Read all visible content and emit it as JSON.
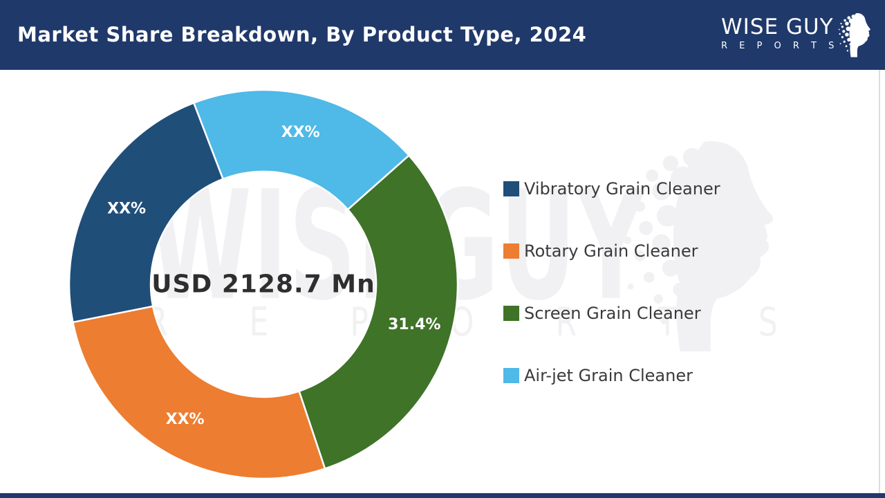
{
  "header": {
    "title": "Market Share Breakdown, By Product Type, 2024",
    "logo": {
      "line1": "WISE GUY",
      "line2": "R E P O R T S"
    }
  },
  "watermark": {
    "line1": "WISEGUY",
    "line2": "R E P O R T S"
  },
  "chart_data": {
    "type": "pie",
    "variant": "donut",
    "title": "Market Share Breakdown, By Product Type, 2024",
    "center_label": "USD 2128.7 Mn",
    "start_angle_deg": 111,
    "direction": "counterclockwise",
    "hole_ratio": 0.58,
    "legend_position": "right",
    "categories": [
      "Vibratory Grain Cleaner",
      "Rotary Grain Cleaner",
      "Screen Grain Cleaner",
      "Air-jet Grain Cleaner"
    ],
    "series": [
      {
        "name": "Vibratory Grain Cleaner",
        "value_pct": 22.3,
        "label": "XX%",
        "color": "#1F4E79"
      },
      {
        "name": "Rotary Grain Cleaner",
        "value_pct": 27.0,
        "label": "XX%",
        "color": "#ED7D31"
      },
      {
        "name": "Screen Grain Cleaner",
        "value_pct": 31.4,
        "label": "31.4%",
        "color": "#3F7328"
      },
      {
        "name": "Air-jet Grain Cleaner",
        "value_pct": 19.3,
        "label": "XX%",
        "color": "#4FB9E7"
      }
    ]
  },
  "colors": {
    "header_bg": "#20396B",
    "footer_bg": "#20396B",
    "title_text": "#FFFFFF",
    "legend_text": "#3A3A3A",
    "center_text": "#2E2E2E",
    "slice_label_text": "#FFFFFF",
    "watermark": "#F1F1F4"
  }
}
